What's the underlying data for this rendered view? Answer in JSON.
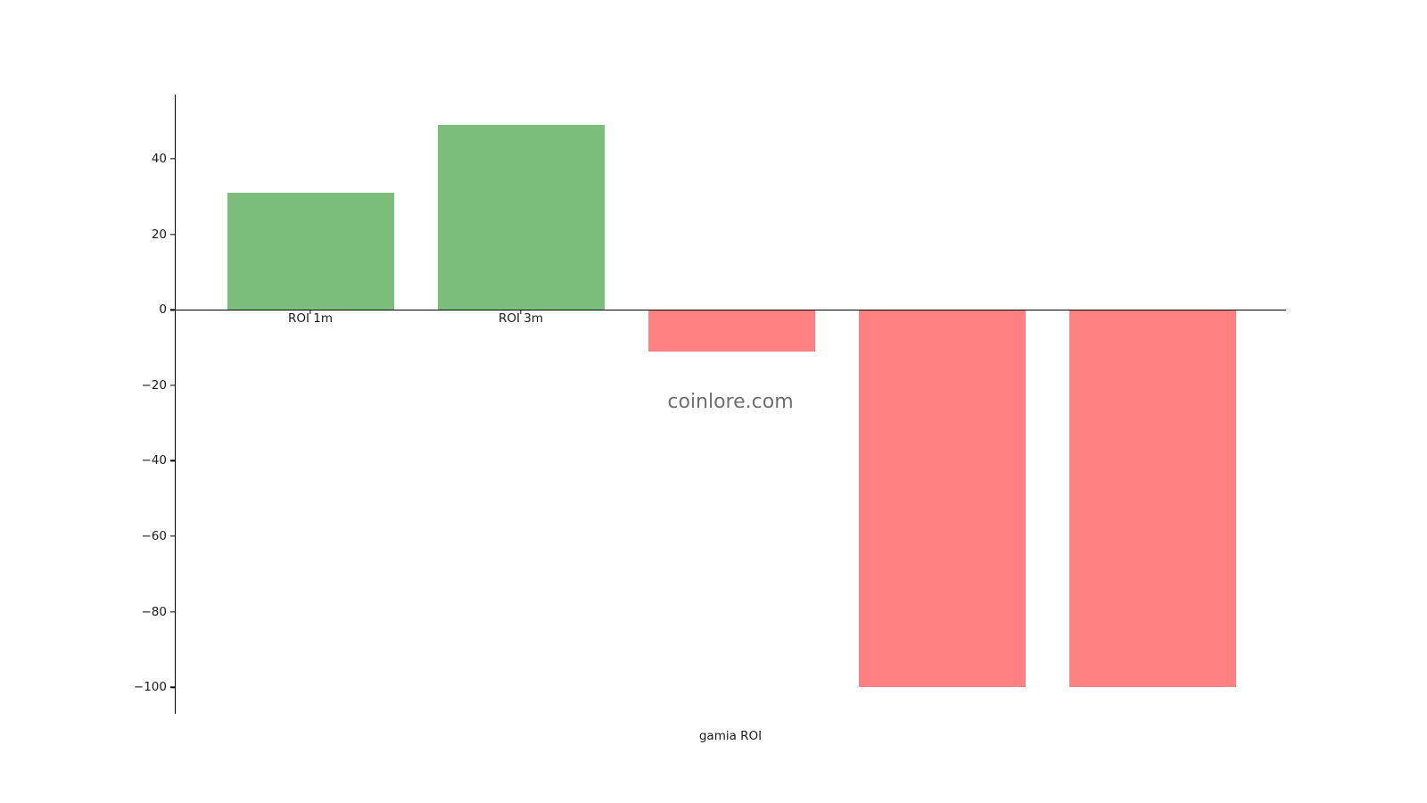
{
  "page": {
    "background_color": "#ffffff"
  },
  "watermark": {
    "text": "coinlore.com",
    "color": "#6f6f6f"
  },
  "chart_data": {
    "type": "bar",
    "title": "",
    "xlabel": "gamia ROI",
    "ylabel": "",
    "categories": [
      "ROI 1m",
      "ROI 3m",
      "",
      "",
      ""
    ],
    "values": [
      31,
      49,
      -11,
      -100,
      -100
    ],
    "yticks": [
      40,
      20,
      0,
      -20,
      -40,
      -60,
      -80,
      -100
    ],
    "ylim": [
      -107,
      57
    ],
    "grid": false,
    "legend_position": "none",
    "positive_color": "#7cbf7c",
    "negative_color": "#ff8080",
    "axis_color": "#000000",
    "tick_label_color": "#1a1a1a"
  }
}
